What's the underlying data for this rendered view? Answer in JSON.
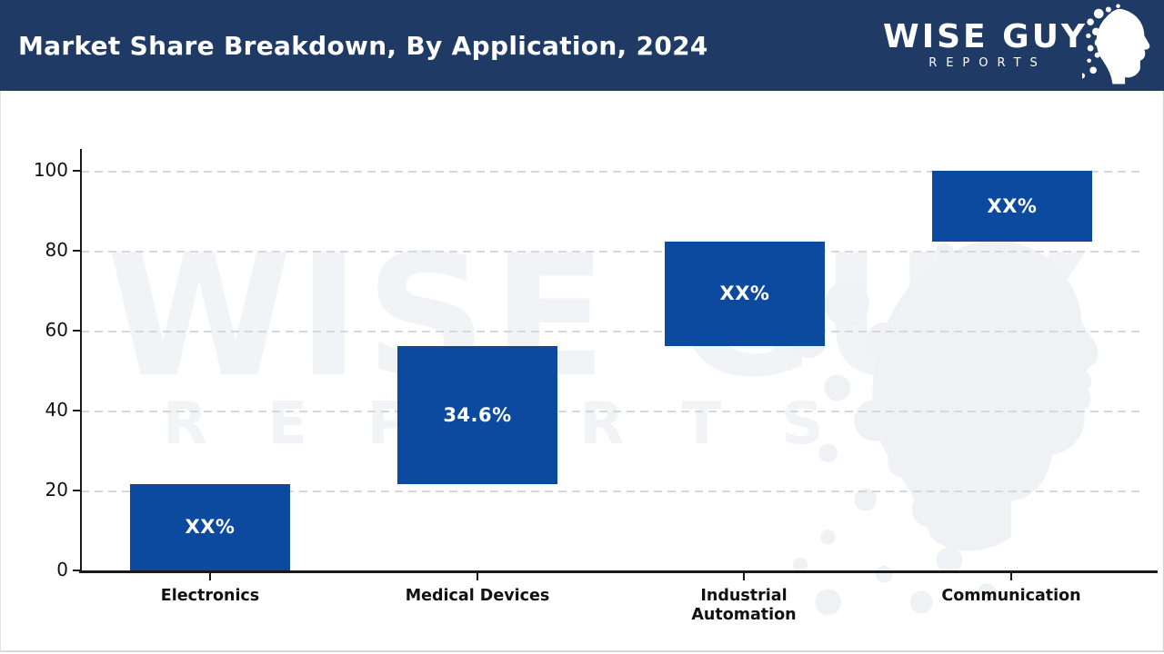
{
  "header": {
    "title": "Market Share Breakdown, By Application, 2024",
    "logo": {
      "line1": "WISE GUY",
      "line2": "REPORTS"
    }
  },
  "watermark": {
    "line1": "WISE GUY",
    "line2": "REPORTS"
  },
  "chart_data": {
    "type": "bar",
    "subtype": "waterfall",
    "title": "Market Share Breakdown, By Application, 2024",
    "categories": [
      "Electronics",
      "Medical Devices",
      "Industrial Automation",
      "Communication"
    ],
    "bars": [
      {
        "category": "Electronics",
        "label": "XX%",
        "start": 0,
        "end": 21.6
      },
      {
        "category": "Medical Devices",
        "label": "34.6%",
        "start": 21.6,
        "end": 56.2
      },
      {
        "category": "Industrial Automation",
        "label": "XX%",
        "start": 56.2,
        "end": 82.3
      },
      {
        "category": "Communication",
        "label": "XX%",
        "start": 82.3,
        "end": 100
      }
    ],
    "ylim": [
      0,
      100
    ],
    "y_ticks": [
      "100",
      "80",
      "60",
      "40",
      "20",
      "0"
    ],
    "grid": "horizontal-dashed",
    "legend": "none",
    "bar_color": "#0b4a9e",
    "bar_label_color": "#ffffff"
  },
  "colors": {
    "header_bg": "#203a66",
    "bar_blue": "#0b4a9e",
    "grid_line": "#d8d8d8",
    "axis": "#1a1a1a",
    "watermark": "#f2f3f6"
  }
}
